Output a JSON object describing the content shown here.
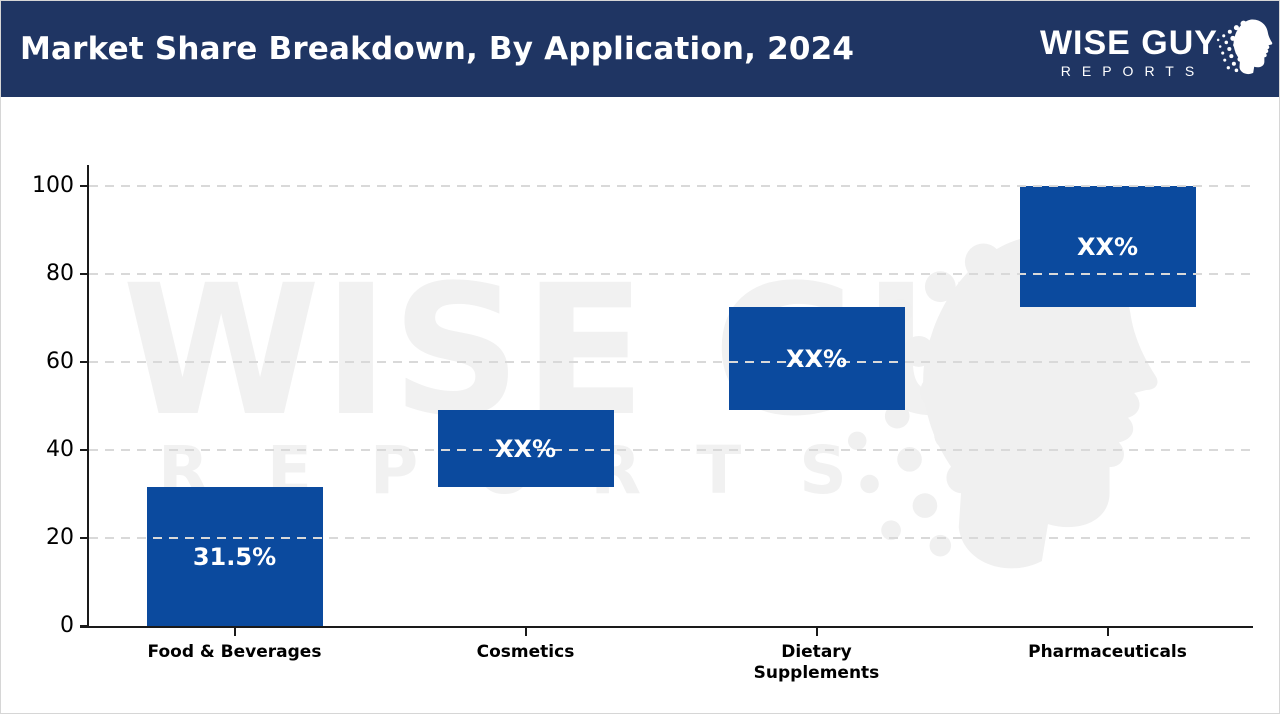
{
  "header": {
    "title": "Market Share Breakdown, By Application, 2024",
    "bg": "#1f3563",
    "logo": {
      "line1": "WISE GUY",
      "line2": "REPORTS",
      "head_icon": "wiseguy-head-icon"
    }
  },
  "watermark": {
    "line1": "WISE GUY",
    "line2": "REPORTS",
    "color": "#f1f1f1"
  },
  "chart_data": {
    "type": "bar",
    "subtype": "waterfall",
    "title": "Market Share Breakdown, By Application, 2024",
    "categories": [
      "Food & Beverages",
      "Cosmetics",
      "Dietary\nSupplements",
      "Pharmaceuticals"
    ],
    "bars": [
      {
        "category": "Food & Beverages",
        "from": 0,
        "to": 31.5,
        "label": "31.5%"
      },
      {
        "category": "Cosmetics",
        "from": 31.5,
        "to": 49,
        "label": "XX%"
      },
      {
        "category": "Dietary Supplements",
        "from": 49,
        "to": 72.5,
        "label": "XX%"
      },
      {
        "category": "Pharmaceuticals",
        "from": 72.5,
        "to": 100,
        "label": "XX%"
      }
    ],
    "y_ticks": [
      0,
      20,
      40,
      60,
      80,
      100
    ],
    "ylim": [
      0,
      105
    ],
    "xlabel": "",
    "ylabel": "",
    "grid": "horizontal-dashed",
    "grid_on_top_of_bars": true,
    "legend": "none",
    "colors": {
      "bar": "#0b4a9e",
      "bar_label": "#ffffff",
      "grid": "#d9d9d9",
      "axis": "#1a1a1a",
      "tick_label": "#000000"
    }
  }
}
